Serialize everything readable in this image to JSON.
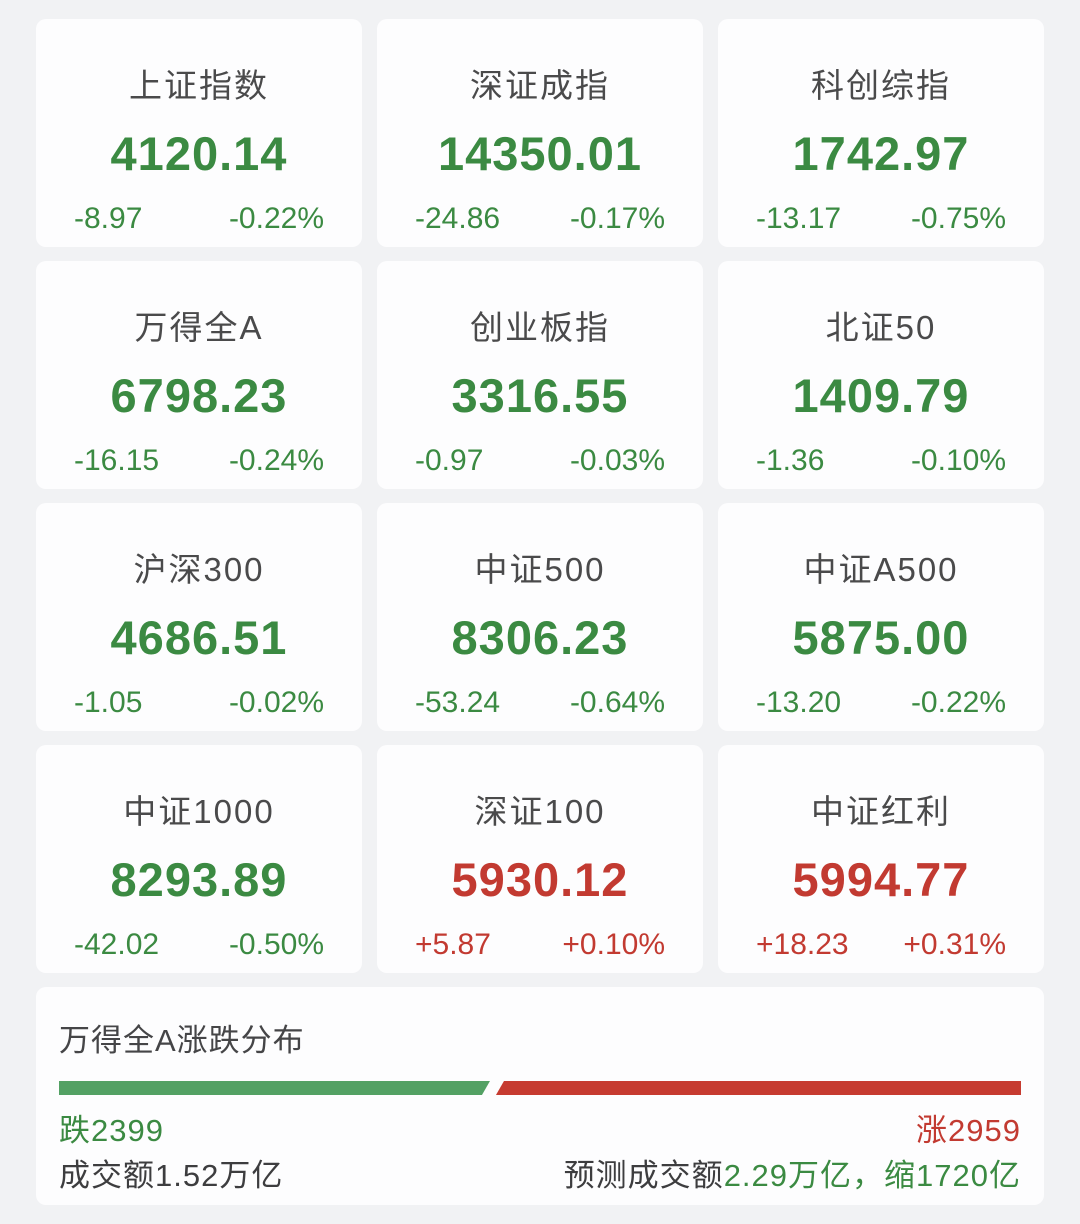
{
  "colors": {
    "down_green": "#3b8a42",
    "up_red": "#c23a31",
    "bar_green": "#53a164",
    "bar_red": "#c63b30",
    "label_gray": "#4a4a4b",
    "page_bg": "#f1f2f4",
    "card_bg": "#fdfdfe"
  },
  "indices": [
    {
      "name": "上证指数",
      "value": "4120.14",
      "change": "-8.97",
      "pct": "-0.22%",
      "direction": "down"
    },
    {
      "name": "深证成指",
      "value": "14350.01",
      "change": "-24.86",
      "pct": "-0.17%",
      "direction": "down"
    },
    {
      "name": "科创综指",
      "value": "1742.97",
      "change": "-13.17",
      "pct": "-0.75%",
      "direction": "down"
    },
    {
      "name": "万得全A",
      "value": "6798.23",
      "change": "-16.15",
      "pct": "-0.24%",
      "direction": "down"
    },
    {
      "name": "创业板指",
      "value": "3316.55",
      "change": "-0.97",
      "pct": "-0.03%",
      "direction": "down"
    },
    {
      "name": "北证50",
      "value": "1409.79",
      "change": "-1.36",
      "pct": "-0.10%",
      "direction": "down"
    },
    {
      "name": "沪深300",
      "value": "4686.51",
      "change": "-1.05",
      "pct": "-0.02%",
      "direction": "down"
    },
    {
      "name": "中证500",
      "value": "8306.23",
      "change": "-53.24",
      "pct": "-0.64%",
      "direction": "down"
    },
    {
      "name": "中证A500",
      "value": "5875.00",
      "change": "-13.20",
      "pct": "-0.22%",
      "direction": "down"
    },
    {
      "name": "中证1000",
      "value": "8293.89",
      "change": "-42.02",
      "pct": "-0.50%",
      "direction": "down"
    },
    {
      "name": "深证100",
      "value": "5930.12",
      "change": "+5.87",
      "pct": "+0.10%",
      "direction": "up"
    },
    {
      "name": "中证红利",
      "value": "5994.77",
      "change": "+18.23",
      "pct": "+0.31%",
      "direction": "up"
    }
  ],
  "distribution": {
    "title": "万得全A涨跌分布",
    "fall_count": 2399,
    "rise_count": 2959,
    "fall_pct": 44.8,
    "fall_label": "跌2399",
    "rise_label": "涨2959",
    "turnover_label": "成交额1.52万亿",
    "forecast_prefix": "预测成交额",
    "forecast_value": "2.29万亿，缩1720亿"
  }
}
